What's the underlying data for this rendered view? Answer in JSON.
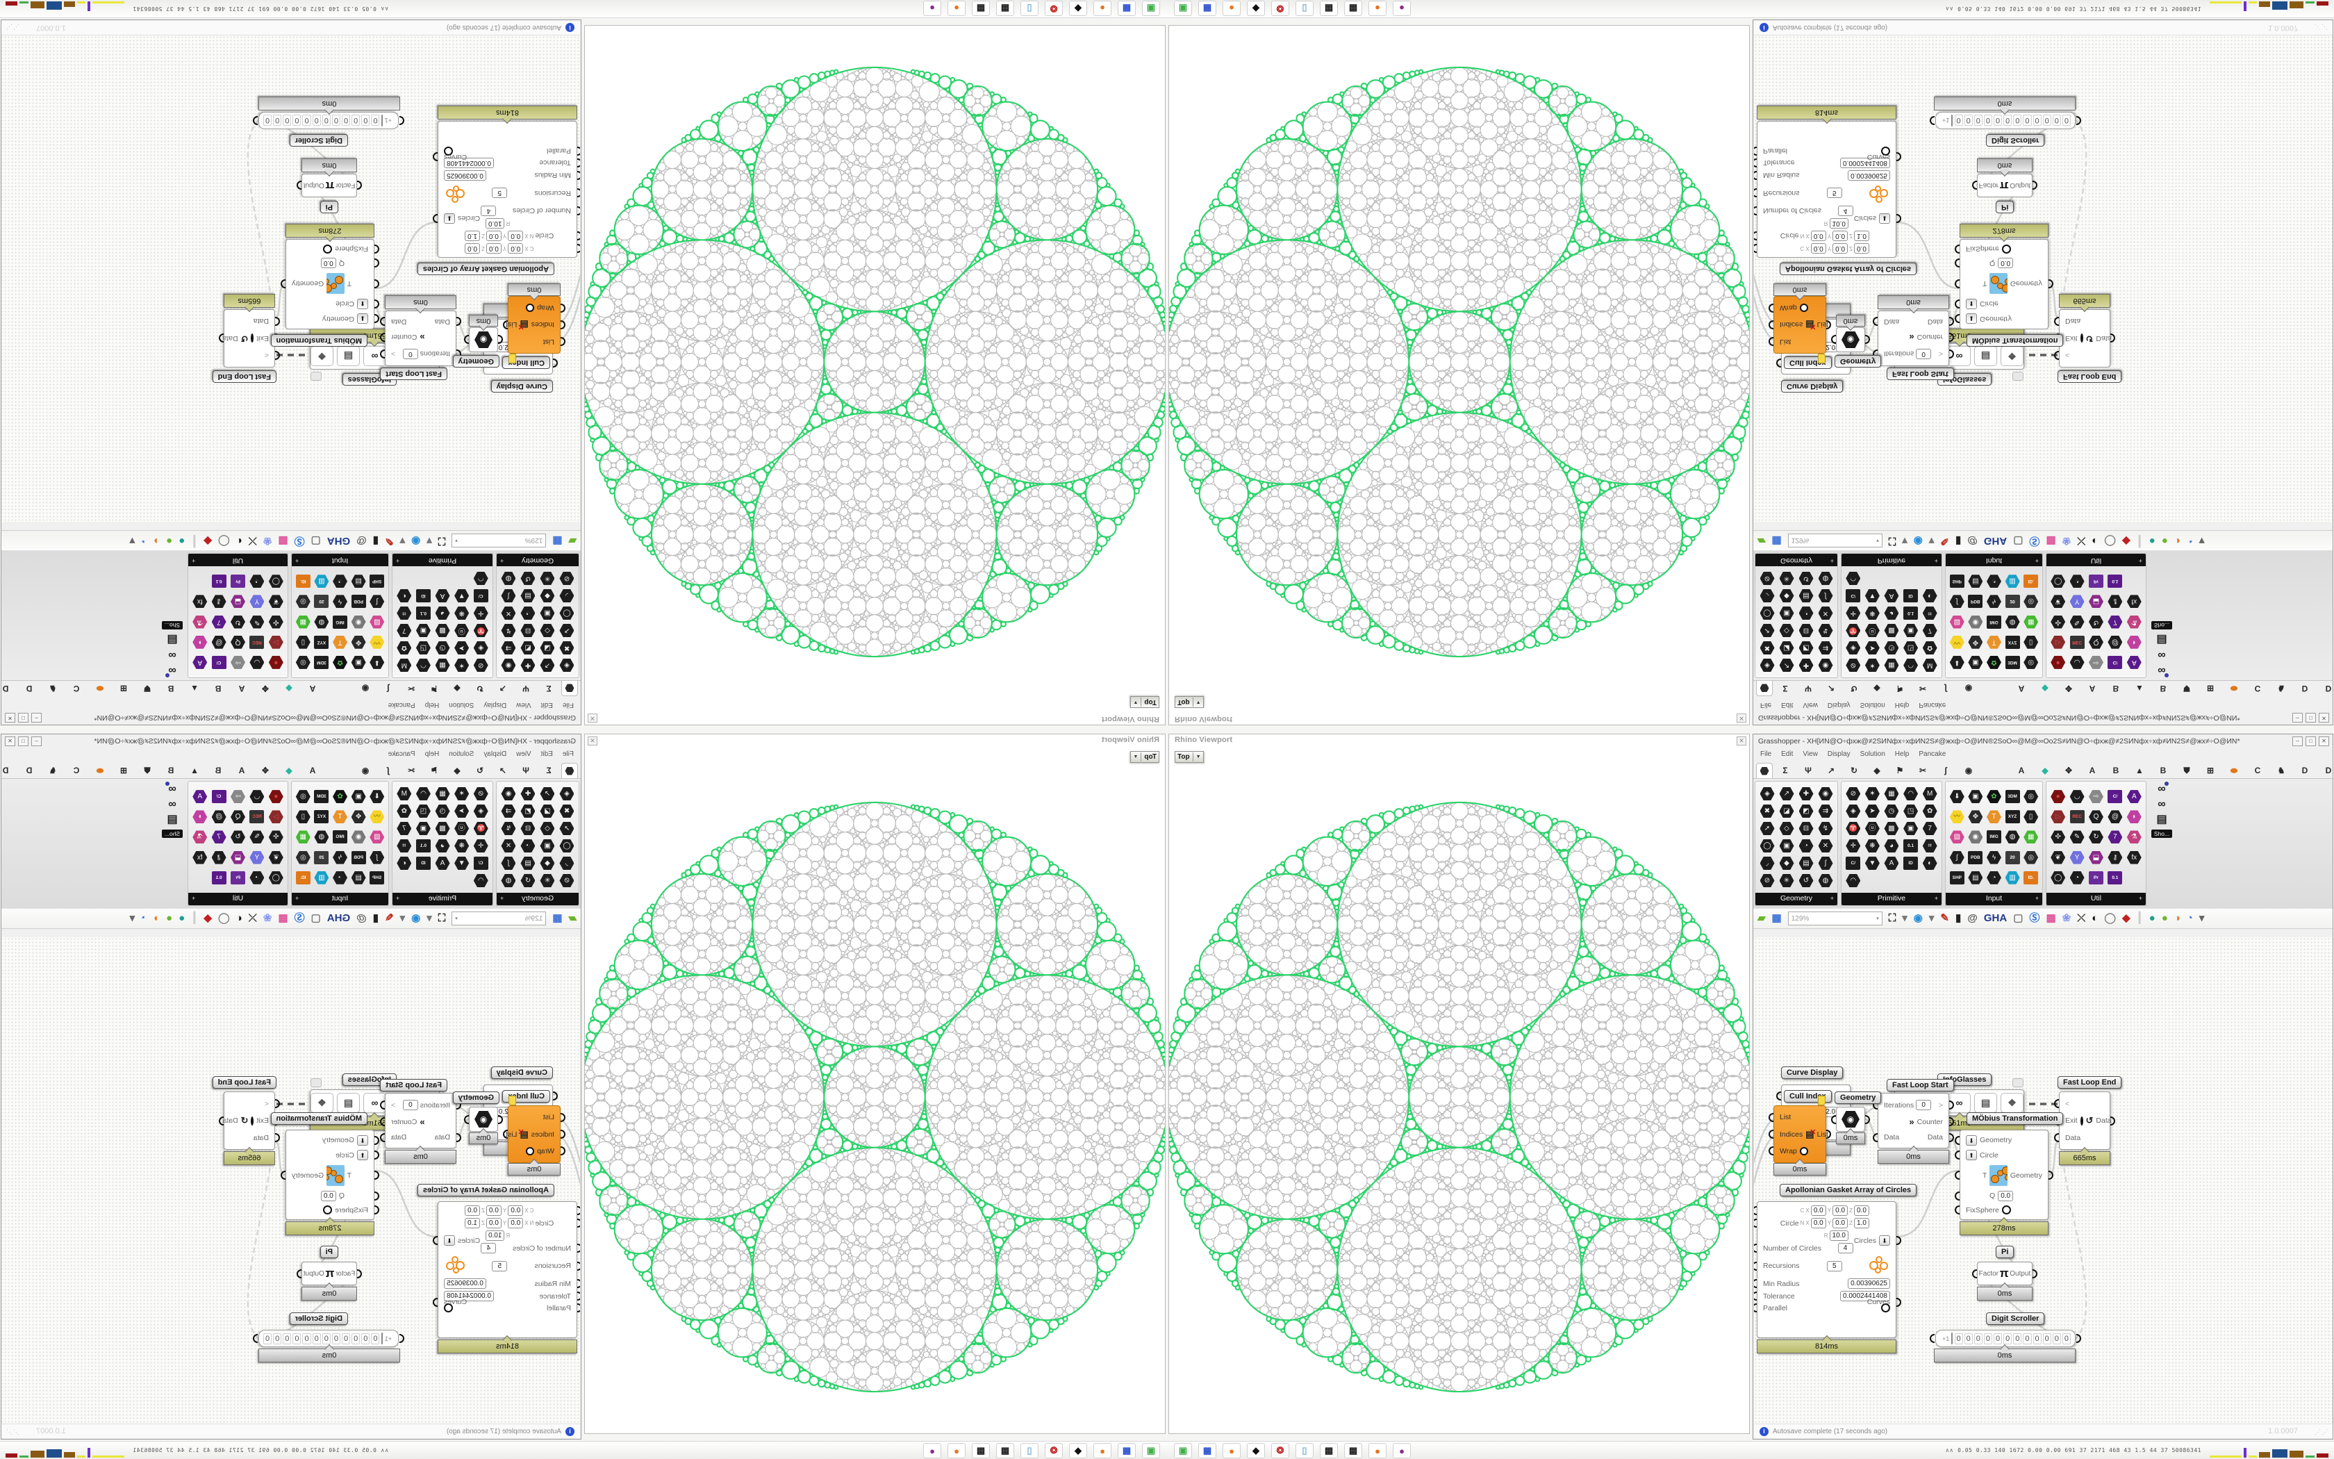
{
  "viewport": {
    "title": "Rhino Viewport",
    "view_button": "Top",
    "dropdown_glyph": "▼",
    "close_glyph": "✕"
  },
  "gh": {
    "title": "Grasshopper - XH[ИN@O÷фхж@≠2SИNфх÷хфИN2S≠@жхф÷O@ИN®2SоO∞@M@∞Oо2S≠ИN@O÷фхж@≠2SИNфх÷хф≠ИN2S≠@жх≠÷O@ИN*",
    "window_buttons": [
      "–",
      "□",
      "✕"
    ],
    "menu": [
      "File",
      "Edit",
      "View",
      "Display",
      "Solution",
      "Help",
      "Pancake"
    ],
    "tabs_main": [
      "",
      "Σ",
      "Ψ",
      "↗",
      "↻",
      "◆",
      "⚑",
      "✂",
      "ʃ",
      "◉"
    ],
    "tabs_plugins": [
      "A",
      "◆|#2ab5a0",
      "✥",
      "A",
      "B",
      "▲",
      "B",
      "⛊",
      "⊞",
      "⬬|#e07818",
      "C",
      "♞",
      "D",
      "D",
      "E",
      "E",
      "▦",
      "E"
    ],
    "panels": [
      {
        "label": "Geometry",
        "cols": 4,
        "more": "+",
        "icons": [
          "◈",
          "↗",
          "✚",
          "◉",
          "✖",
          "◪",
          "◩",
          "⇉",
          "➚",
          "◇",
          "⊟",
          "↯",
          "◯",
          "▣",
          "◔",
          "✕",
          "◞",
          "◆",
          "▤",
          "ʃ",
          "⊘",
          "✳",
          "↺",
          "◍"
        ]
      },
      {
        "label": "Primitive",
        "cols": 5,
        "more": "+",
        "icons": [
          "⊘",
          "✶",
          "▦",
          "◠",
          "M",
          "◈",
          "➤",
          "◷",
          "◳",
          "✿",
          "♈",
          "ⓤ",
          "▩",
          "▣",
          "7",
          "✛",
          "❋",
          "◕",
          "0.1",
          "⌗",
          "C/",
          "▼",
          "A",
          "ID",
          "◐",
          "◠"
        ]
      },
      {
        "label": "Input",
        "cols": 5,
        "more": "+",
        "icons": [
          "⬇",
          "▣",
          "✿|#111|#58c058",
          "3DM",
          "◎",
          "〰|#f5d327|#7a5a00",
          "✥|#2a2a2a",
          "T|#e8922a|#fff",
          "XYZ",
          "▯",
          "▨|#d24a93|#fff",
          "◉|#777|#fff",
          "IMG",
          "◍",
          "▦|#46b832|#fff",
          "∫",
          "PDB",
          "ϟ",
          "20|#3a3a3a|#fff",
          "◎|#2a2a2a",
          "SHP",
          "▤",
          "◔",
          "▥|#18a0c8|#fff",
          "ID.|#e07818|#fff"
        ]
      },
      {
        "label": "Util",
        "cols": 5,
        "more": "+",
        "icons": [
          "●|#7a1010|#d04040",
          "◡",
          "⇨|#888|#eee",
          "C/|#5a1a8a|#fff",
          "A|#5a1a8a|#fff",
          "▷|#8a2a2a|#c05050",
          "REC|#333|#f05050",
          "Q",
          "@",
          "◗|#c040a0|#fff",
          "✣",
          "✎",
          "↻",
          "7|#5a1a8a|#fff",
          "⚗|#c04080|#fff",
          "❦",
          "Y|#7070e0|#fff",
          "⬓|#8a2a8a|#fff",
          "⚷",
          "fx",
          "◯",
          "◔",
          "Pr|#6a2a9a|#fff",
          "0.1|#5a1a8a|#fff"
        ]
      }
    ],
    "side_icons": [
      "∞",
      "∞",
      "▤"
    ],
    "side_more": "Sho...",
    "toolbar": {
      "zoom": "129%",
      "dropdown_glyph": "▾",
      "icons": [
        "▰|#6cb52d",
        "▦|#3a6fd8",
        "ZOOM",
        "⛶|#222",
        "▾|#777",
        "◉|#2a8fd8",
        "▾|#777",
        "✎|#c03020",
        "▮|#222",
        "@|#555",
        "GHA|#203a8a",
        "▢|#777",
        "Ⓢ|#2a6fd8",
        "▩|#e0559a",
        "❀|#8899ee",
        "⤬|#333",
        "◐|#111",
        "◯|#888",
        "◆|#c02020",
        "┃|#ccc",
        "●|#1f9e8e",
        "●|#6cb52d",
        "◑|#e07b28",
        "◔|#3a6fd8",
        "▾|#666"
      ]
    },
    "status": {
      "autosave": "Autosave complete (17 seconds ago)",
      "info_glyph": "i",
      "version": "1.0.0007",
      "grip": "⋰⋰"
    }
  },
  "canvas": {
    "sockets": {
      "in": "(",
      "out": ")"
    },
    "curve_display": {
      "label": "Curve Display",
      "time": "2ms",
      "color": "#2bd36a",
      "rows": [
        {
          "label": "Curves"
        },
        {
          "label": "Thickness",
          "value": "2.0"
        },
        {
          "label": "Color"
        }
      ]
    },
    "infoglasses": {
      "label": "InfoGlasses",
      "time": "551ms",
      "buttons": [
        {
          "g": "≡",
          "bg": "#2b2b78",
          "fg": "#ffffff",
          "round": "1"
        },
        {
          "g": "∷",
          "fg": "#3a3a3a"
        },
        {
          "g": "∞",
          "fg": "#222222"
        },
        {
          "g": "▤",
          "fg": "#555555"
        },
        {
          "g": "❖",
          "fg": "#555555"
        }
      ]
    },
    "fast_loop_start": {
      "label": "Fast Loop Start",
      "iterations_label": "Iterations",
      "iterations_value": "0",
      "counter_label": "Counter",
      "data_in": "Data",
      "data_out": "Data",
      "gt": ">",
      "icon": "»",
      "time": "0ms"
    },
    "fast_loop_end": {
      "label": "Fast Loop End",
      "lt": "<",
      "exit_label": "Exit",
      "icon": "↺",
      "data_out": "Data",
      "data_in": "Data",
      "time": "665ms"
    },
    "cull_index": {
      "label": "Cull Index",
      "time": "0ms",
      "in": [
        "List",
        "Indices",
        "Wrap"
      ],
      "out": "List",
      "icon_list": "▤",
      "icon_x": "✕"
    },
    "geometry_param": {
      "label": "Geometry",
      "time": "0ms",
      "icon": "◉"
    },
    "mobius": {
      "label": "MÖbius Transformation",
      "time": "278ms",
      "out": "Geometry",
      "q_value": "0.0",
      "rows": [
        {
          "label": "Geometry",
          "btn": "⬇"
        },
        {
          "label": "Circle",
          "btn": "⬆"
        },
        {
          "label": "T"
        },
        {
          "label": "Q"
        },
        {
          "label": "FixSphere"
        }
      ]
    },
    "pi": {
      "label": "Pi",
      "factor": "Factor",
      "symbol": "π",
      "output": "Output",
      "time": "0ms"
    },
    "digit_scroller": {
      "label": "Digit Scroller",
      "plus": "+1",
      "time": "0ms",
      "digits": [
        "0",
        "0",
        "0",
        "0",
        "0",
        "0",
        "0",
        "0",
        "0",
        "0",
        "0",
        "0"
      ]
    },
    "apollonian": {
      "label": "Apollonian Gasket Array of Circles",
      "time": "814ms",
      "vec_rows": [
        {
          "label": "",
          "key": "C",
          "parts": [
            {
              "k": "X",
              "v": "0.0"
            },
            {
              "k": "Y",
              "v": "0.0"
            },
            {
              "k": "Z",
              "v": "0.0"
            }
          ]
        },
        {
          "label": "Circle",
          "key": "N",
          "parts": [
            {
              "k": "X",
              "v": "0.0"
            },
            {
              "k": "Y",
              "v": "0.0"
            },
            {
              "k": "Z",
              "v": "1.0"
            }
          ]
        },
        {
          "label": "",
          "key": "R",
          "parts": [
            {
              "k": "",
              "v": "10.0"
            }
          ]
        }
      ],
      "params": [
        {
          "label": "Number of Circles",
          "v": "4"
        },
        {
          "label": "Recursions",
          "v": "5"
        },
        {
          "label": "Min Radius",
          "v": "0.00390625"
        },
        {
          "label": "Tolerance",
          "v": "0.0002441408"
        }
      ],
      "parallel_label": "Parallel",
      "out_circles": "Circles",
      "out_circles_btn": "⬇",
      "out_curves": "Curves"
    }
  },
  "gasket": {
    "green": "#2bd36a",
    "gray": "#b9b9b9"
  },
  "taskbar": {
    "icons": [
      {
        "g": "▣",
        "c": "#3fae49"
      },
      {
        "g": "▦",
        "c": "#2a4fd0"
      },
      {
        "g": "●",
        "c": "#e8731a"
      },
      {
        "g": "◆",
        "c": "#111111"
      },
      {
        "g": "❂",
        "c": "#c02020"
      },
      {
        "g": "▯",
        "c": "#7ab0d8"
      },
      {
        "g": "▩",
        "c": "#222222"
      },
      {
        "g": "▩",
        "c": "#222222"
      },
      {
        "g": "●",
        "c": "#e8731a"
      },
      {
        "g": "●",
        "c": "#8a2a8a"
      }
    ],
    "tray_chevrons": "∧∧",
    "tray_text": "0.05 0.33 140 1672 0.00 0.00 691  37  2171 468  43  1.5  44  37  50086341",
    "tray_bars": [
      {
        "c": "#e8e83a",
        "w": 46,
        "h": 3
      },
      {
        "c": "#6a2fd0",
        "w": 4,
        "h": 14
      },
      {
        "c": "#e8e83a",
        "w": 12,
        "h": 3
      },
      {
        "c": "#8a5a13",
        "w": 16,
        "h": 8
      },
      {
        "c": "#1f4e8c",
        "w": 22,
        "h": 12
      },
      {
        "c": "#8a5a13",
        "w": 20,
        "h": 10
      },
      {
        "c": "#3fae49",
        "w": 13,
        "h": 3
      },
      {
        "c": "#9a1515",
        "w": 17,
        "h": 6
      }
    ]
  }
}
